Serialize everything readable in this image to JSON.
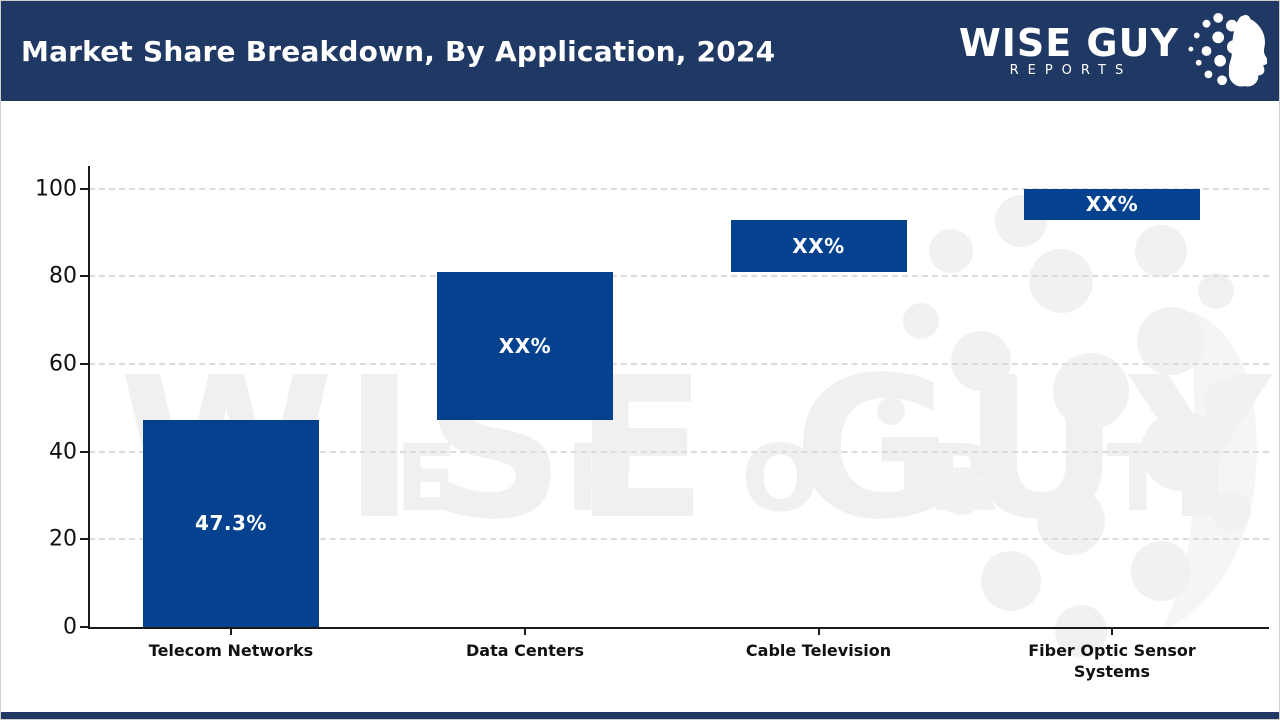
{
  "header": {
    "title": "Market Share Breakdown, By Application, 2024",
    "logo": {
      "brand": "WISE GUY",
      "sub": "REPORTS"
    }
  },
  "watermark": {
    "line1": "WISE GUY",
    "line2": "R E P O R T S"
  },
  "chart_data": {
    "type": "bar",
    "subtype": "waterfall",
    "title": "Market Share Breakdown, By Application, 2024",
    "categories": [
      "Telecom Networks",
      "Data Centers",
      "Cable Television",
      "Fiber Optic Sensor Systems"
    ],
    "segments": [
      {
        "category": "Telecom Networks",
        "start": 0,
        "end": 47.3,
        "label": "47.3%"
      },
      {
        "category": "Data Centers",
        "start": 47.3,
        "end": 81,
        "label": "XX%"
      },
      {
        "category": "Cable Television",
        "start": 81,
        "end": 92.8,
        "label": "XX%"
      },
      {
        "category": "Fiber Optic Sensor Systems",
        "start": 92.8,
        "end": 100,
        "label": "XX%"
      }
    ],
    "ylim": [
      0,
      100
    ],
    "yticks": [
      0,
      20,
      40,
      60,
      80,
      100
    ],
    "xlabel": "",
    "ylabel": "",
    "grid": "horizontal-dashed",
    "legend": "none",
    "bar_color": "#04428f",
    "bar_label_color": "#ffffff"
  },
  "colors": {
    "header_bg": "#203864",
    "footer_bg": "#203864",
    "axis": "#1a1a1a",
    "grid": "#dcdcdc",
    "watermark": "#f0f0f0"
  }
}
